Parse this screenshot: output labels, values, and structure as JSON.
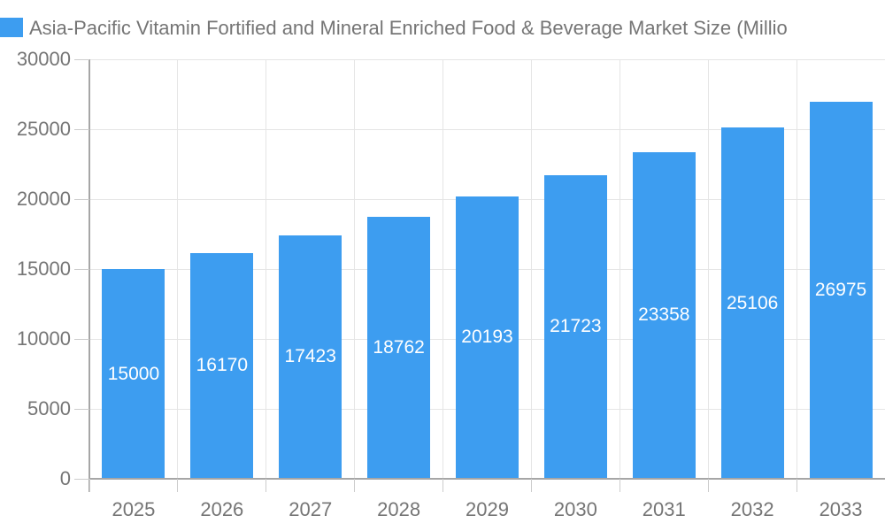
{
  "chart_data": {
    "type": "bar",
    "title": "Asia-Pacific Vitamin Fortified and Mineral Enriched Food & Beverage Market Size (Millio",
    "categories": [
      "2025",
      "2026",
      "2027",
      "2028",
      "2029",
      "2030",
      "2031",
      "2032",
      "2033"
    ],
    "values": [
      15000,
      16170,
      17423,
      18762,
      20193,
      21723,
      23358,
      25106,
      26975
    ],
    "bar_value_labels": [
      "15000",
      "16170",
      "17423",
      "18762",
      "20193",
      "21723",
      "23358",
      "25106",
      "26975"
    ],
    "xlabel": "",
    "ylabel": "",
    "ylim": [
      0,
      30000
    ],
    "y_ticks": [
      0,
      5000,
      10000,
      15000,
      20000,
      25000,
      30000
    ],
    "y_tick_labels": [
      "0",
      "5000",
      "10000",
      "15000",
      "20000",
      "25000",
      "30000"
    ],
    "grid": true,
    "legend_position": "top-left",
    "colors": {
      "bar": "#3d9df0",
      "text": "#757575",
      "grid": "#e5e5e5",
      "axis": "#a6a6a6",
      "tick": "#cccccc",
      "bar_label": "#ffffff",
      "background": "#ffffff"
    }
  }
}
